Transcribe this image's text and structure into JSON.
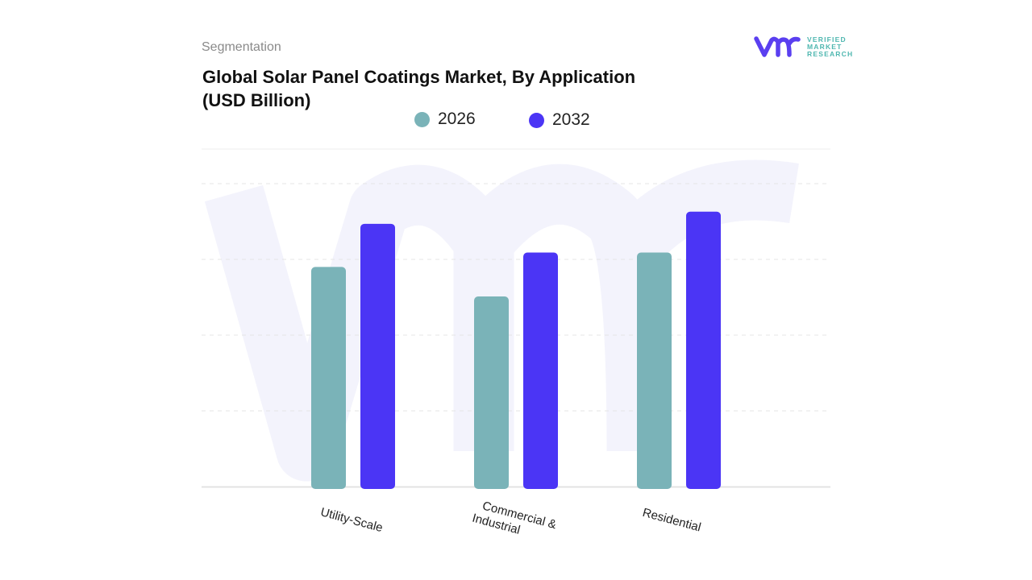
{
  "header": {
    "section": "Segmentation",
    "title_line1": "Global Solar Panel Coatings Market, By Application",
    "title_line2": "(USD Billion)"
  },
  "logo": {
    "text": [
      "VERIFIED",
      "MARKET",
      "RESEARCH"
    ],
    "mark": "vmr"
  },
  "chart_data": {
    "type": "bar",
    "title": "Global Solar Panel Coatings Market, By Application (USD Billion)",
    "categories": [
      "Utility-Scale",
      "Commercial & Industrial",
      "Residential"
    ],
    "series": [
      {
        "name": "2026",
        "color": "#7ab3b8",
        "values": [
          2.9,
          2.51,
          3.09
        ]
      },
      {
        "name": "2032",
        "color": "#4b35f5",
        "values": [
          3.47,
          3.09,
          3.63
        ]
      }
    ],
    "ylim": [
      0,
      4.45
    ],
    "y_tick_labels_shown": false,
    "grid": true,
    "legend": "top-center"
  }
}
